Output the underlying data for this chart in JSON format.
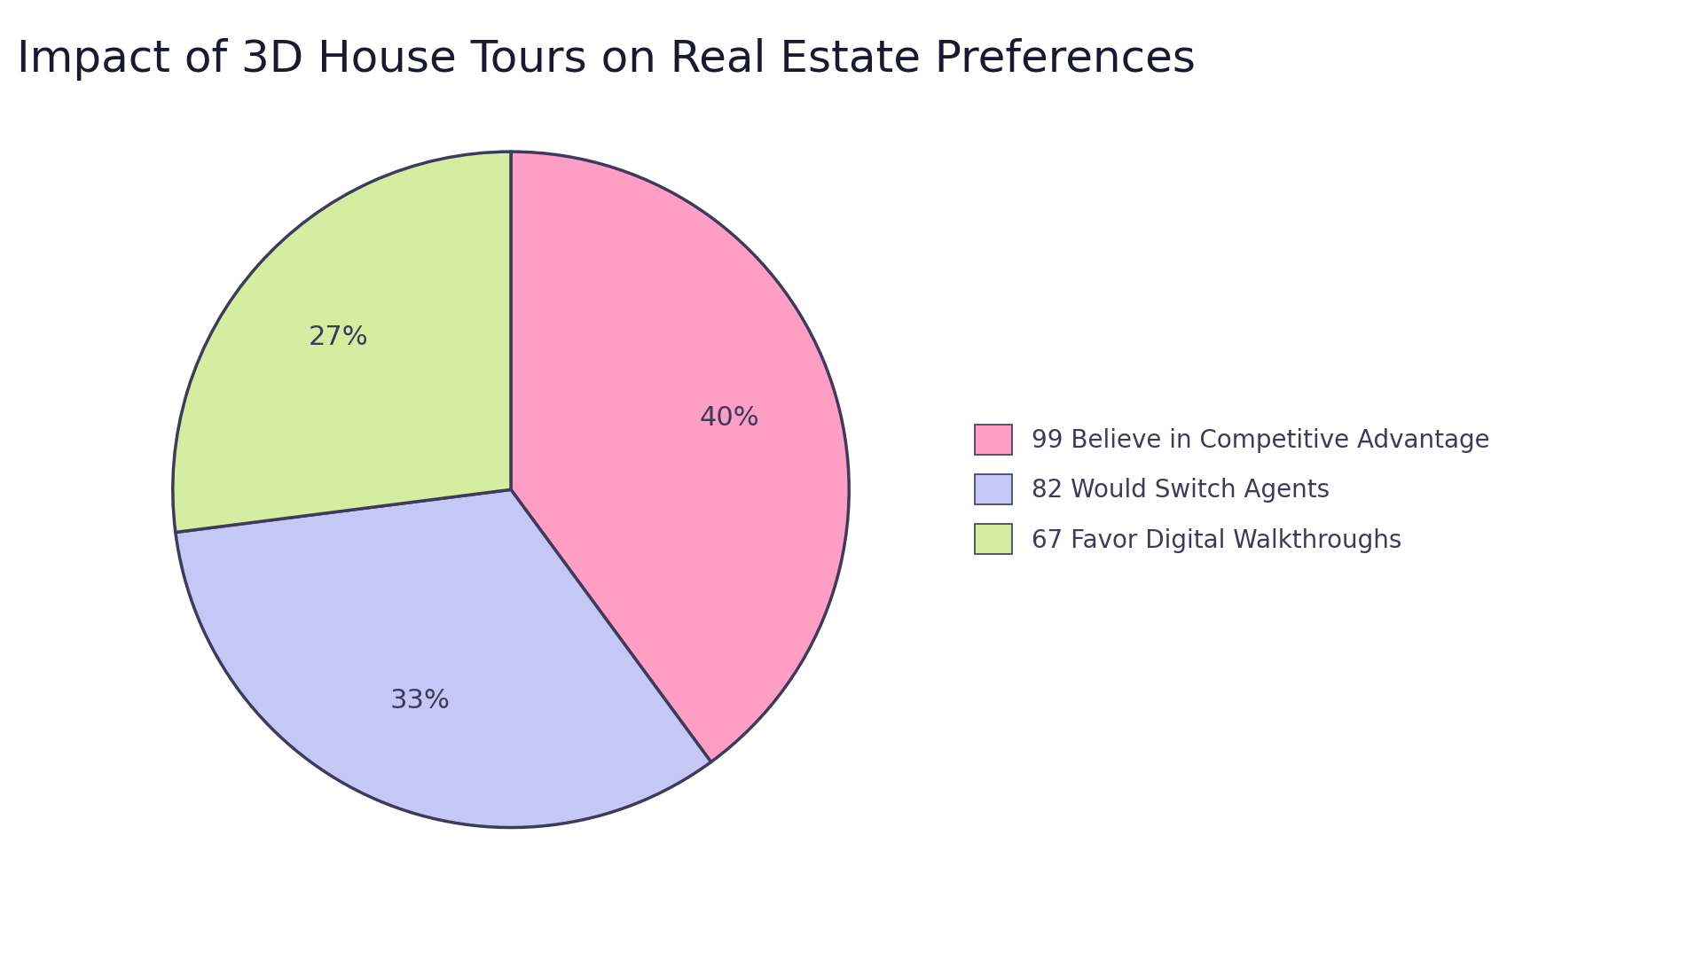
{
  "title": "Impact of 3D House Tours on Real Estate Preferences",
  "slices": [
    99,
    82,
    67
  ],
  "labels": [
    "99 Believe in Competitive Advantage",
    "82 Would Switch Agents",
    "67 Favor Digital Walkthroughs"
  ],
  "colors": [
    "#FF9EC4",
    "#C5C8F5",
    "#D4EDA0"
  ],
  "percentages": [
    "40%",
    "33%",
    "27%"
  ],
  "edge_color": "#3D3A5C",
  "edge_width": 2.5,
  "background_color": "#FFFFFF",
  "title_fontsize": 36,
  "pct_fontsize": 22,
  "legend_fontsize": 20,
  "startangle": 90,
  "pct_distance": 0.68
}
